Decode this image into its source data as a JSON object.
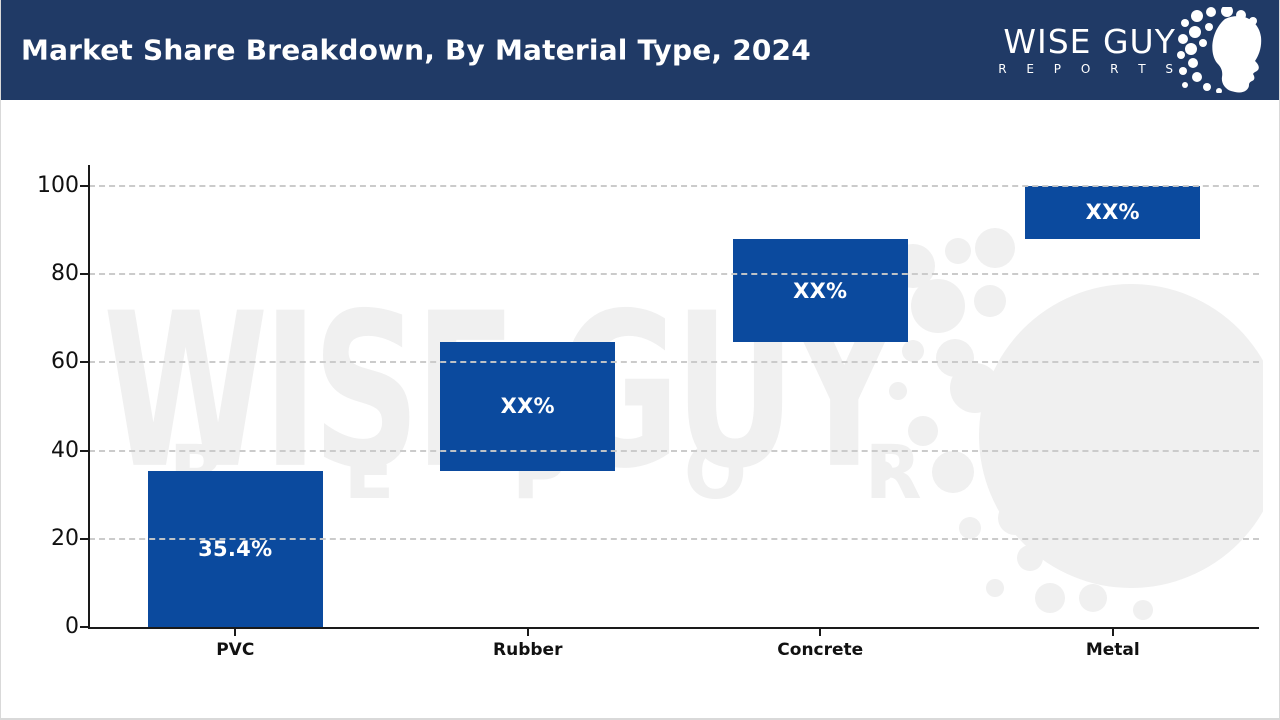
{
  "header": {
    "title": "Market Share Breakdown, By Material Type, 2024",
    "bg_color": "#203A66",
    "logo": {
      "name": "WISE GUY",
      "tagline": "R E P O R T S"
    }
  },
  "watermark": {
    "name": "WISE GUY",
    "tagline": "R E P O R T S"
  },
  "chart_data": {
    "type": "bar",
    "subtype": "waterfall-style floating bars",
    "title": "Market Share Breakdown, By Material Type, 2024",
    "categories": [
      "PVC",
      "Rubber",
      "Concrete",
      "Metal"
    ],
    "segments": [
      {
        "category": "PVC",
        "start": 0,
        "end": 35.4,
        "label": "35.4%"
      },
      {
        "category": "Rubber",
        "start": 35.4,
        "end": 64.6,
        "label": "XX%"
      },
      {
        "category": "Concrete",
        "start": 64.6,
        "end": 88,
        "label": "XX%"
      },
      {
        "category": "Metal",
        "start": 88,
        "end": 100,
        "label": "XX%"
      }
    ],
    "xlabel": "",
    "ylabel": "",
    "ylim": [
      0,
      100
    ],
    "yticks": [
      0,
      20,
      40,
      60,
      80,
      100
    ],
    "grid": "horizontal-dashed",
    "legend": "none",
    "colors": {
      "bar": "#0B4A9E",
      "bar_label": "#FFFFFF",
      "axis": "#1A1A1A",
      "grid": "#D9D9D9",
      "header_bg": "#203A66",
      "watermark": "#F0F0F0"
    }
  }
}
